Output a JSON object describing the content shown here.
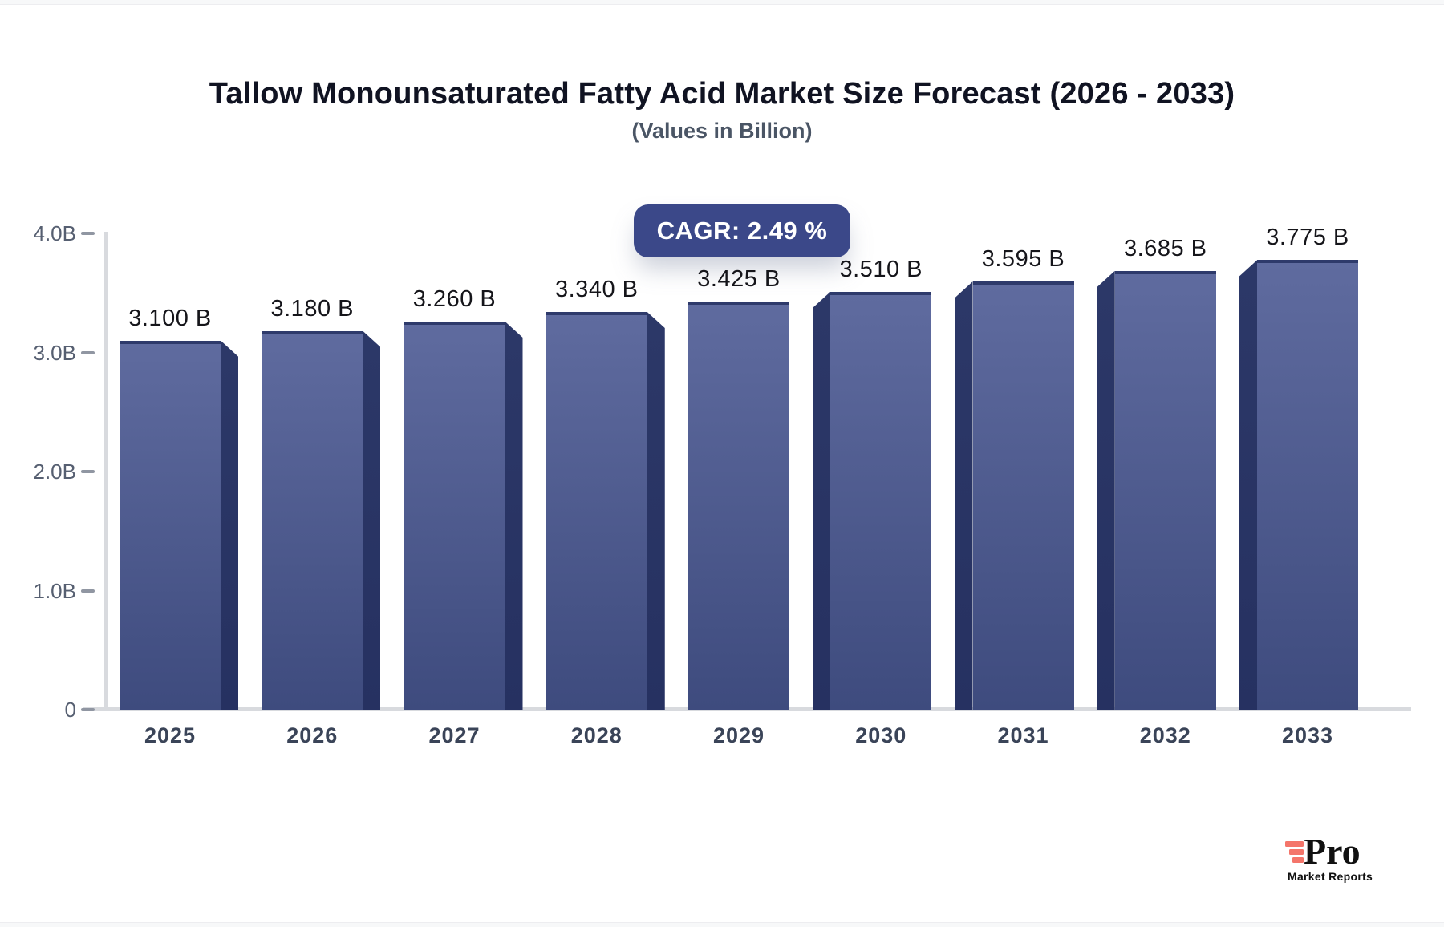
{
  "page": {
    "title": "Tallow Monounsaturated Fatty Acid Market Size Forecast (2026 - 2033)",
    "subtitle": "(Values in Billion)"
  },
  "badge": {
    "label": "CAGR: 2.49 %",
    "bg_color": "#3b4889",
    "text_color": "#ffffff"
  },
  "chart_data": {
    "type": "bar",
    "title": "Tallow Monounsaturated Fatty Acid Market Size Forecast (2026 - 2033)",
    "subtitle": "(Values in Billion)",
    "annotation": "CAGR: 2.49 %",
    "categories": [
      "2025",
      "2026",
      "2027",
      "2028",
      "2029",
      "2030",
      "2031",
      "2032",
      "2033"
    ],
    "values": [
      3.1,
      3.18,
      3.26,
      3.34,
      3.425,
      3.51,
      3.595,
      3.685,
      3.775
    ],
    "value_labels": [
      "3.100 B",
      "3.180 B",
      "3.260 B",
      "3.340 B",
      "3.425 B",
      "3.510 B",
      "3.595 B",
      "3.685 B",
      "3.775 B"
    ],
    "unit": "Billion",
    "xlabel": "",
    "ylabel": "",
    "ylim": [
      0,
      4.0
    ],
    "yticks": [
      {
        "value": 4.0,
        "label": "4.0B"
      },
      {
        "value": 3.0,
        "label": "3.0B"
      },
      {
        "value": 2.0,
        "label": "2.0B"
      },
      {
        "value": 1.0,
        "label": "1.0B"
      },
      {
        "value": 0,
        "label": "0"
      }
    ],
    "grid": false,
    "legend": false,
    "colors": {
      "bar_face_top": "#5f6b9f",
      "bar_face_bottom": "#3e4b7e",
      "bar_top_edge": "#2e3a6b",
      "bar_side": "#2a3565",
      "axis_line": "#d8dade",
      "tick_label": "#565f71",
      "category_label": "#3a4458",
      "value_label": "#15151a"
    }
  },
  "branding": {
    "logo_text": "Pro",
    "logo_subtext": "Market Reports",
    "accent_color": "#f4756a",
    "text_color": "#111111"
  }
}
